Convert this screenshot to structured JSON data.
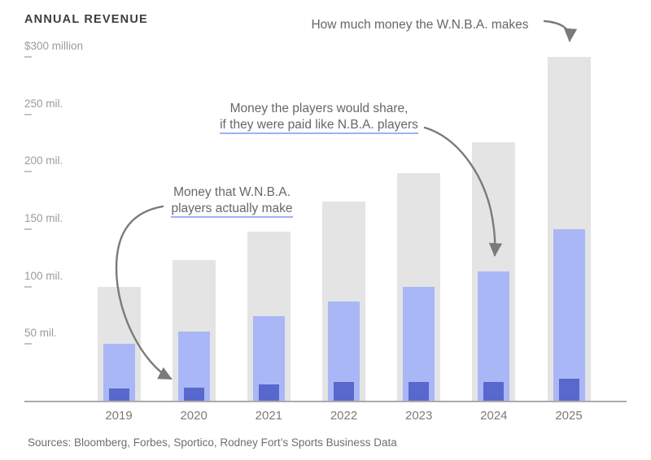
{
  "header": {
    "title": "ANNUAL REVENUE"
  },
  "chart_data": {
    "type": "bar",
    "title": "ANNUAL REVENUE",
    "subtitle_unit_label": "$300 million",
    "categories": [
      "2019",
      "2020",
      "2021",
      "2022",
      "2023",
      "2024",
      "2025"
    ],
    "series": [
      {
        "name": "How much money the W.N.B.A. makes",
        "role": "total-revenue",
        "color": "#e4e4e4",
        "values": [
          100,
          123,
          148,
          174,
          199,
          226,
          300
        ]
      },
      {
        "name": "Money the players would share, if they were paid like N.B.A. players",
        "role": "nba-style-player-share",
        "color": "#a9b7f7",
        "values": [
          50,
          61,
          74,
          87,
          100,
          113,
          150
        ]
      },
      {
        "name": "Money that W.N.B.A. players actually make",
        "role": "actual-player-pay",
        "color": "#5868cc",
        "values": [
          11,
          12,
          15,
          17,
          17,
          17,
          20
        ]
      }
    ],
    "y_axis": {
      "unit": "millions of dollars",
      "range": [
        0,
        300
      ],
      "ticks": [
        {
          "value": 300,
          "label": "$300 million"
        },
        {
          "value": 250,
          "label": "250 mil."
        },
        {
          "value": 200,
          "label": "200 mil."
        },
        {
          "value": 150,
          "label": "150 mil."
        },
        {
          "value": 100,
          "label": "100 mil."
        },
        {
          "value": 50,
          "label": "50 mil."
        }
      ]
    },
    "xlabel": "",
    "ylabel": "",
    "grid": false,
    "legend_position": "inline-annotations"
  },
  "annotations": {
    "total": {
      "line1": "How much money the W.N.B.A. makes"
    },
    "share": {
      "line1": "Money the players would share,",
      "line2": "if they were paid like N.B.A. players"
    },
    "actual": {
      "line1": "Money that W.N.B.A.",
      "line2": "players actually make"
    }
  },
  "source": {
    "text": "Sources: Bloomberg, Forbes, Sportico, Rodney Fort’s Sports Business Data"
  },
  "colors": {
    "total_bar": "#e4e4e4",
    "share_bar": "#a9b7f7",
    "actual_bar": "#5868cc",
    "underline": "#9fb1f4",
    "arrow": "#7a7a7a",
    "axis": "#ababab"
  }
}
